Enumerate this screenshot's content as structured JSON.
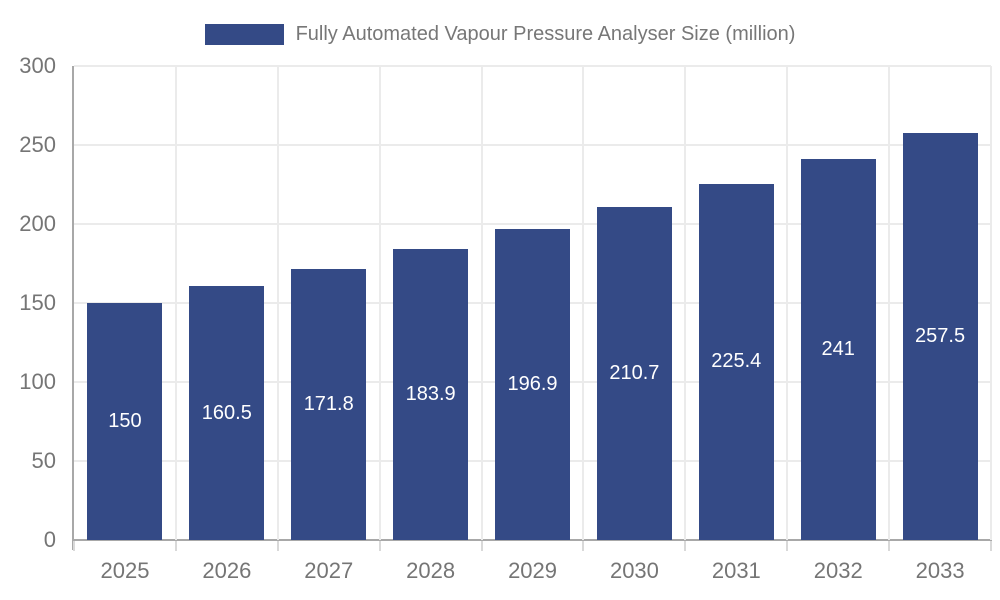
{
  "legend": {
    "label": "Fully Automated Vapour Pressure Analyser Size (million)"
  },
  "chart_data": {
    "type": "bar",
    "title": "Fully Automated Vapour Pressure Analyser Size (million)",
    "categories": [
      "2025",
      "2026",
      "2027",
      "2028",
      "2029",
      "2030",
      "2031",
      "2032",
      "2033"
    ],
    "values": [
      150,
      160.5,
      171.8,
      183.9,
      196.9,
      210.7,
      225.4,
      241,
      257.5
    ],
    "xlabel": "",
    "ylabel": "",
    "ylim": [
      0,
      300
    ],
    "yticks": [
      0,
      50,
      100,
      150,
      200,
      250,
      300
    ],
    "grid": true,
    "legend_position": "top-center",
    "value_labels_position": "inside-center",
    "colors": {
      "bar": "#344a86",
      "value_label": "#ffffff",
      "axis_text": "#757575",
      "legend_text": "#777777",
      "gridline": "#ebebeb",
      "axis_line": "#a8a8a8",
      "tick": "#d9d9d9",
      "background": "#ffffff"
    }
  }
}
